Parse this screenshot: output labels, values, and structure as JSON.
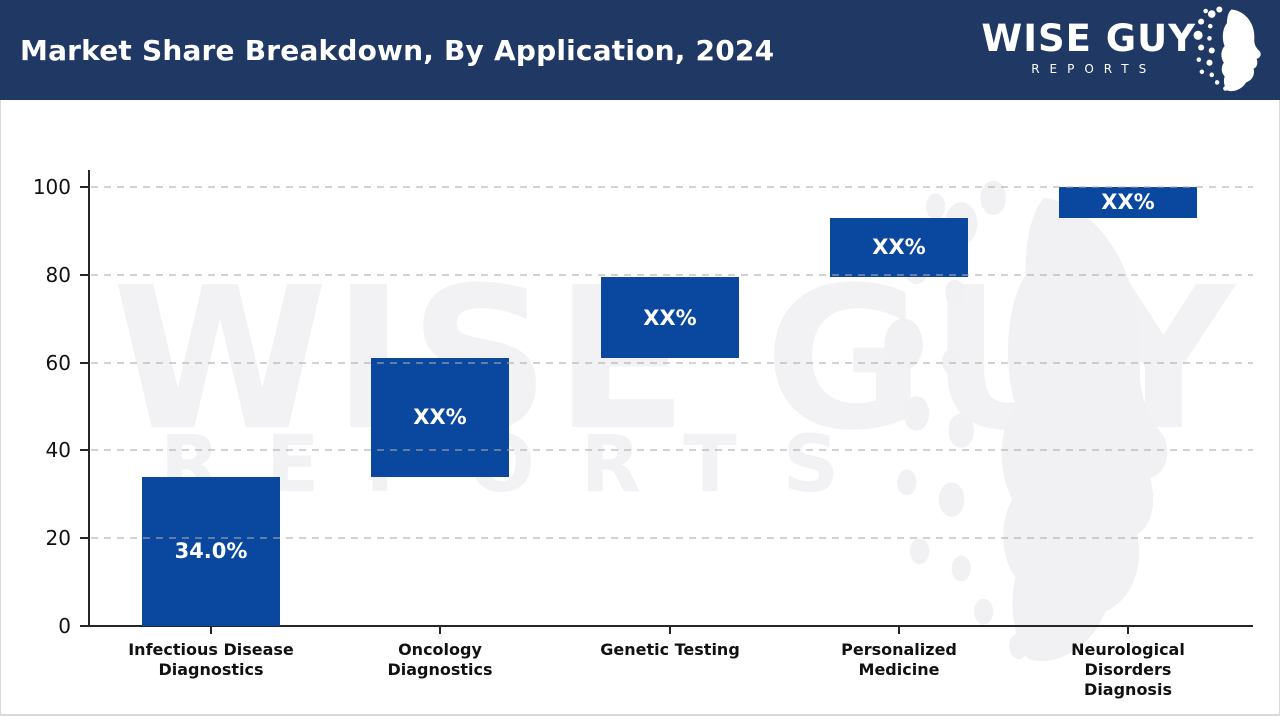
{
  "header": {
    "title": "Market Share Breakdown, By Application, 2024",
    "logo": {
      "name": "WISE GUY",
      "subtitle": "REPORTS",
      "icon": "dotted-head-profile"
    }
  },
  "watermark": {
    "name": "WISE GUY",
    "subtitle": "REPORTS",
    "icon": "dotted-head-profile"
  },
  "colors": {
    "header_bg": "#1f3864",
    "bar": "#0a479e",
    "bar_label": "#ffffff",
    "axis": "#262626",
    "tick_label": "#111111",
    "grid": "rgba(172,172,172,0.55)",
    "watermark": "#f2f2f4",
    "frame_border": "#d9d9d9"
  },
  "chart_data": {
    "type": "bar",
    "subtype": "waterfall",
    "title": "Market Share Breakdown, By Application, 2024",
    "xlabel": "",
    "ylabel": "",
    "ylim": [
      0,
      104
    ],
    "yticks": [
      0,
      20,
      40,
      60,
      80,
      100
    ],
    "grid": "horizontal-dashed",
    "legend": "none",
    "bar_color": "#0a479e",
    "categories": [
      {
        "label": "Infectious Disease Diagnostics",
        "lines": [
          "Infectious Disease",
          "Diagnostics"
        ]
      },
      {
        "label": "Oncology Diagnostics",
        "lines": [
          "Oncology",
          "Diagnostics"
        ]
      },
      {
        "label": "Genetic Testing",
        "lines": [
          "Genetic Testing"
        ]
      },
      {
        "label": "Personalized Medicine",
        "lines": [
          "Personalized",
          "Medicine"
        ]
      },
      {
        "label": "Neurological Disorders Diagnosis",
        "lines": [
          "Neurological",
          "Disorders",
          "Diagnosis"
        ]
      }
    ],
    "segments": [
      {
        "category": "Infectious Disease Diagnostics",
        "start": 0,
        "end": 34,
        "value": 34.0,
        "label": "34.0%"
      },
      {
        "category": "Oncology Diagnostics",
        "start": 34,
        "end": 61,
        "value": null,
        "label": "XX%"
      },
      {
        "category": "Genetic Testing",
        "start": 61,
        "end": 79.5,
        "value": null,
        "label": "XX%"
      },
      {
        "category": "Personalized Medicine",
        "start": 79.5,
        "end": 93,
        "value": null,
        "label": "XX%"
      },
      {
        "category": "Neurological Disorders Diagnosis",
        "start": 93,
        "end": 100,
        "value": null,
        "label": "XX%"
      }
    ]
  }
}
